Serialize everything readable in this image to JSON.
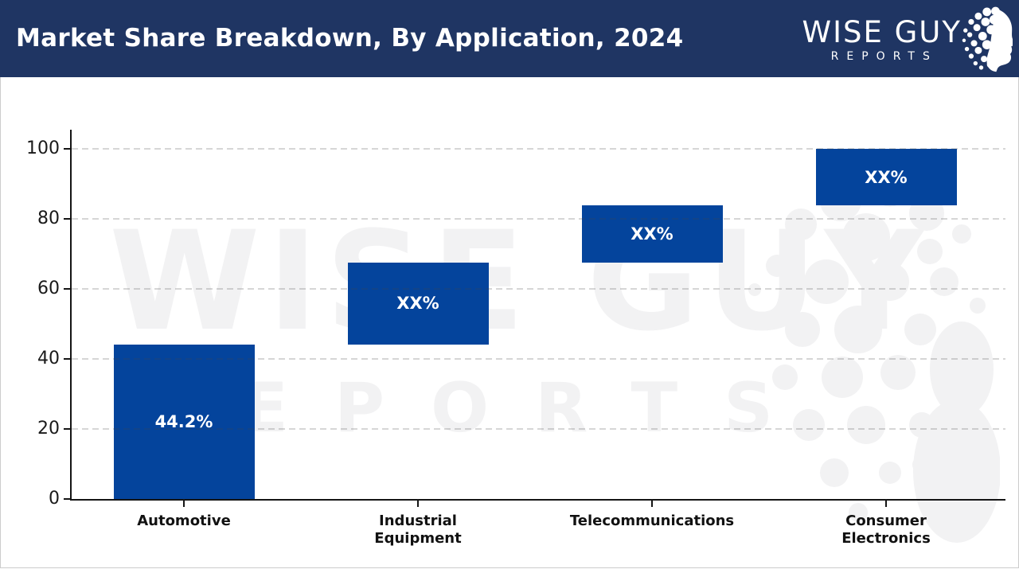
{
  "header": {
    "title": "Market Share Breakdown, By Application, 2024",
    "bg_color": "#1f3563",
    "logo": {
      "line1": "WISE GUY",
      "line2": "REPORTS"
    }
  },
  "icons": {
    "logo_head": "profile-head-dots-icon",
    "watermark_head": "profile-head-dots-watermark"
  },
  "watermark": {
    "line1": "WISE GUY",
    "line2": "REPORTS"
  },
  "chart_data": {
    "type": "bar",
    "subtype": "floating-waterfall",
    "title": "Market Share Breakdown, By Application, 2024",
    "categories": [
      "Automotive",
      "Industrial Equipment",
      "Telecommunications",
      "Consumer Electronics"
    ],
    "category_label_lines": [
      [
        "Automotive"
      ],
      [
        "Industrial",
        "Equipment"
      ],
      [
        "Telecommunications"
      ],
      [
        "Consumer",
        "Electronics"
      ]
    ],
    "segments": [
      {
        "category": "Automotive",
        "start": 0,
        "end": 44.2,
        "value": 44.2,
        "label": "44.2%"
      },
      {
        "category": "Industrial Equipment",
        "start": 44.2,
        "end": 67.5,
        "value": 23.3,
        "label": "XX%"
      },
      {
        "category": "Telecommunications",
        "start": 67.5,
        "end": 83.8,
        "value": 16.3,
        "label": "XX%"
      },
      {
        "category": "Consumer Electronics",
        "start": 83.8,
        "end": 100,
        "value": 16.2,
        "label": "XX%"
      }
    ],
    "yticks": [
      0,
      20,
      40,
      60,
      80,
      100
    ],
    "ylim": [
      0,
      106
    ],
    "xlabel": "",
    "ylabel": "",
    "legend": "none",
    "grid": {
      "axis": "y",
      "style": "dashed",
      "on": true,
      "above_bars": true
    },
    "bar_color": "#04449c",
    "bar_label_color": "#ffffff",
    "axis_color": "#151515"
  }
}
